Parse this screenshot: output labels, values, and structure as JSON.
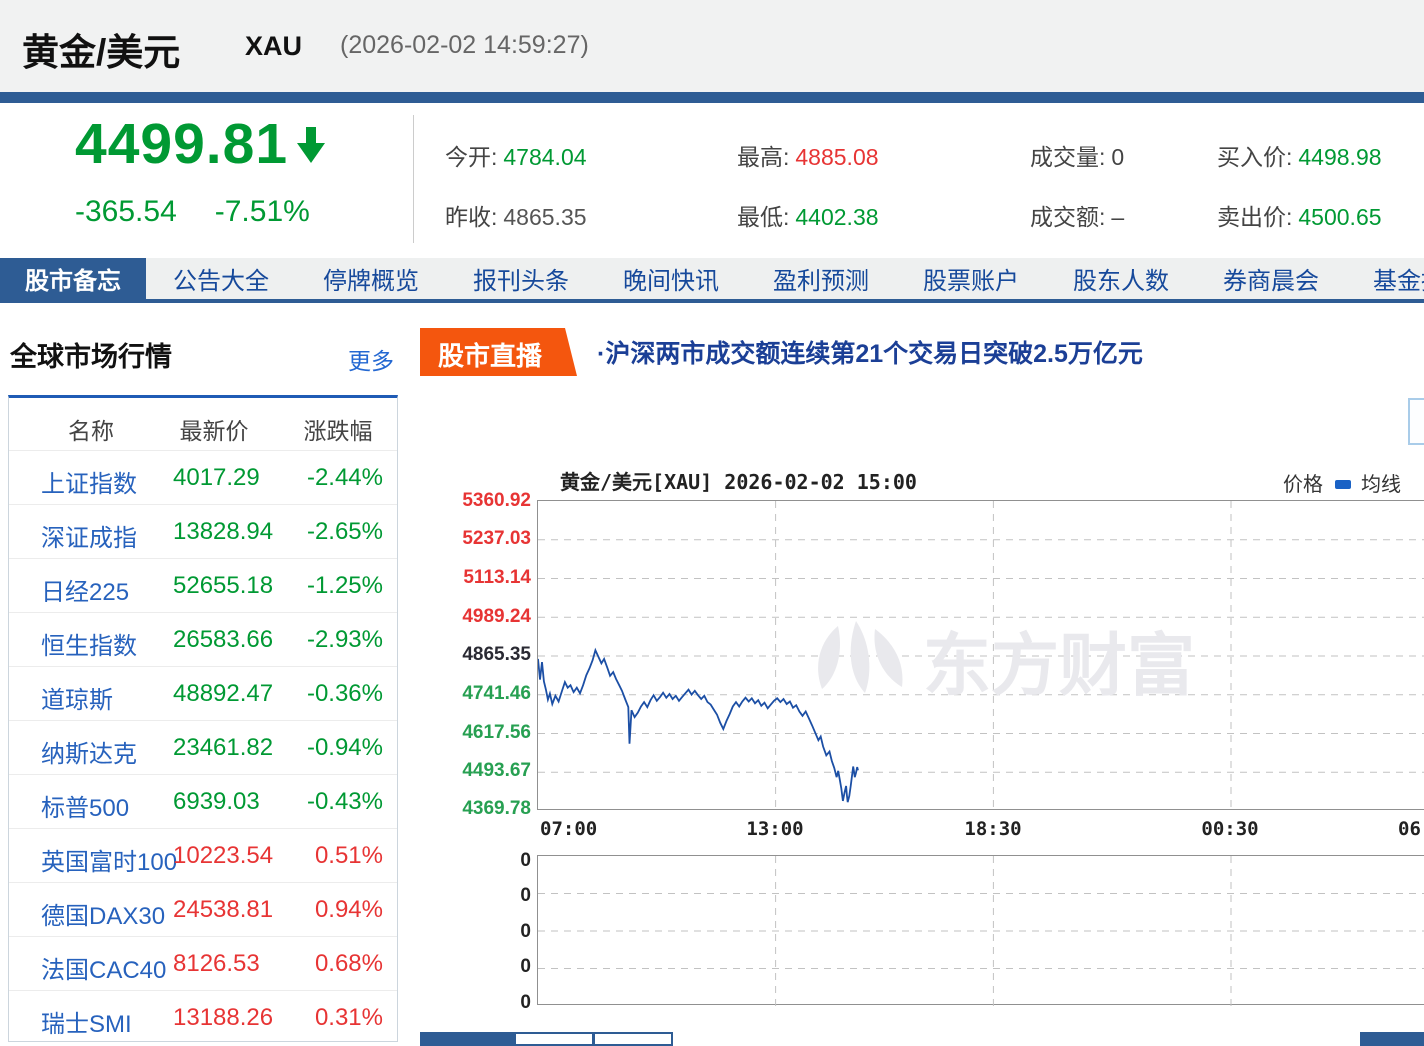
{
  "header": {
    "title": "黄金/美元",
    "symbol": "XAU",
    "timestamp": "(2026-02-02 14:59:27)"
  },
  "quote": {
    "price": "4499.81",
    "change": "-365.54",
    "change_pct": "-7.51%",
    "stats": [
      {
        "label": "今开:",
        "value": "4784.04",
        "color": "green"
      },
      {
        "label": "昨收:",
        "value": "4865.35",
        "color": "gray"
      },
      {
        "label": "最高:",
        "value": "4885.08",
        "color": "red"
      },
      {
        "label": "最低:",
        "value": "4402.38",
        "color": "green"
      },
      {
        "label": "成交量:",
        "value": "0",
        "color": "dark"
      },
      {
        "label": "成交额:",
        "value": "–",
        "color": "dark"
      },
      {
        "label": "买入价:",
        "value": "4498.98",
        "color": "green"
      },
      {
        "label": "卖出价:",
        "value": "4500.65",
        "color": "green"
      }
    ]
  },
  "tabs": {
    "items": [
      {
        "label": "股市备忘"
      },
      {
        "label": "公告大全"
      },
      {
        "label": "停牌概览"
      },
      {
        "label": "报刊头条"
      },
      {
        "label": "晚间快讯"
      },
      {
        "label": "盈利预测"
      },
      {
        "label": "股票账户"
      },
      {
        "label": "股东人数"
      },
      {
        "label": "券商晨会"
      },
      {
        "label": "基金持仓"
      }
    ]
  },
  "sidebar": {
    "title": "全球市场行情",
    "more": "更多",
    "columns": [
      "名称",
      "最新价",
      "涨跌幅"
    ],
    "rows": [
      {
        "name": "上证指数",
        "price": "4017.29",
        "change": "-2.44%",
        "dir": "down"
      },
      {
        "name": "深证成指",
        "price": "13828.94",
        "change": "-2.65%",
        "dir": "down"
      },
      {
        "name": "日经225",
        "price": "52655.18",
        "change": "-1.25%",
        "dir": "down"
      },
      {
        "name": "恒生指数",
        "price": "26583.66",
        "change": "-2.93%",
        "dir": "down"
      },
      {
        "name": "道琼斯",
        "price": "48892.47",
        "change": "-0.36%",
        "dir": "down"
      },
      {
        "name": "纳斯达克",
        "price": "23461.82",
        "change": "-0.94%",
        "dir": "down"
      },
      {
        "name": "标普500",
        "price": "6939.03",
        "change": "-0.43%",
        "dir": "down"
      },
      {
        "name": "英国富时100",
        "price": "10223.54",
        "change": "0.51%",
        "dir": "up"
      },
      {
        "name": "德国DAX30",
        "price": "24538.81",
        "change": "0.94%",
        "dir": "up"
      },
      {
        "name": "法国CAC40",
        "price": "8126.53",
        "change": "0.68%",
        "dir": "up"
      },
      {
        "name": "瑞士SMI",
        "price": "13188.26",
        "change": "0.31%",
        "dir": "up"
      }
    ]
  },
  "live_banner": {
    "badge": "股市直播",
    "headline": "·沪深两市成交额连续第21个交易日突破2.5万亿元"
  },
  "chart_data": {
    "type": "line",
    "title": "黄金/美元[XAU] 2026-02-02 15:00",
    "legend": {
      "price": "价格",
      "ma": "均线"
    },
    "watermark": "东方财富",
    "ylim": [
      4369.78,
      5360.92
    ],
    "y_ticks": [
      {
        "label": "5360.92",
        "color": "red"
      },
      {
        "label": "5237.03",
        "color": "red"
      },
      {
        "label": "5113.14",
        "color": "red"
      },
      {
        "label": "4989.24",
        "color": "red"
      },
      {
        "label": "4865.35",
        "color": "mid"
      },
      {
        "label": "4741.46",
        "color": "green"
      },
      {
        "label": "4617.56",
        "color": "green"
      },
      {
        "label": "4493.67",
        "color": "green"
      },
      {
        "label": "4369.78",
        "color": "green"
      }
    ],
    "x_ticks": [
      {
        "label": "07:00",
        "hour": 0
      },
      {
        "label": "13:00",
        "hour": 6
      },
      {
        "label": "18:30",
        "hour": 11.5
      },
      {
        "label": "00:30",
        "hour": 17.5
      },
      {
        "label": "06",
        "hour": 23.5
      }
    ],
    "x_gridlines_hours": [
      6,
      11.5,
      17.5
    ],
    "prev_close": 4865.35,
    "series": [
      {
        "name": "价格",
        "points": [
          [
            0,
            4856
          ],
          [
            0.05,
            4790
          ],
          [
            0.1,
            4846
          ],
          [
            0.15,
            4784
          ],
          [
            0.2,
            4758
          ],
          [
            0.25,
            4726
          ],
          [
            0.3,
            4745
          ],
          [
            0.36,
            4712
          ],
          [
            0.44,
            4738
          ],
          [
            0.52,
            4720
          ],
          [
            0.6,
            4752
          ],
          [
            0.68,
            4782
          ],
          [
            0.75,
            4764
          ],
          [
            0.82,
            4772
          ],
          [
            0.9,
            4750
          ],
          [
            0.98,
            4764
          ],
          [
            1.06,
            4746
          ],
          [
            1.14,
            4772
          ],
          [
            1.22,
            4804
          ],
          [
            1.3,
            4826
          ],
          [
            1.38,
            4852
          ],
          [
            1.45,
            4884
          ],
          [
            1.52,
            4864
          ],
          [
            1.6,
            4842
          ],
          [
            1.67,
            4856
          ],
          [
            1.75,
            4828
          ],
          [
            1.82,
            4802
          ],
          [
            1.9,
            4814
          ],
          [
            1.97,
            4792
          ],
          [
            2.05,
            4772
          ],
          [
            2.12,
            4754
          ],
          [
            2.2,
            4728
          ],
          [
            2.28,
            4702
          ],
          [
            2.31,
            4585
          ],
          [
            2.36,
            4692
          ],
          [
            2.44,
            4670
          ],
          [
            2.52,
            4684
          ],
          [
            2.6,
            4704
          ],
          [
            2.68,
            4718
          ],
          [
            2.76,
            4702
          ],
          [
            2.84,
            4724
          ],
          [
            2.92,
            4740
          ],
          [
            3.0,
            4722
          ],
          [
            3.08,
            4734
          ],
          [
            3.16,
            4748
          ],
          [
            3.24,
            4732
          ],
          [
            3.32,
            4744
          ],
          [
            3.4,
            4728
          ],
          [
            3.48,
            4738
          ],
          [
            3.56,
            4722
          ],
          [
            3.64,
            4734
          ],
          [
            3.72,
            4746
          ],
          [
            3.8,
            4758
          ],
          [
            3.88,
            4742
          ],
          [
            3.96,
            4754
          ],
          [
            4.04,
            4740
          ],
          [
            4.12,
            4728
          ],
          [
            4.2,
            4738
          ],
          [
            4.28,
            4718
          ],
          [
            4.36,
            4710
          ],
          [
            4.44,
            4694
          ],
          [
            4.52,
            4678
          ],
          [
            4.6,
            4652
          ],
          [
            4.68,
            4632
          ],
          [
            4.76,
            4658
          ],
          [
            4.84,
            4680
          ],
          [
            4.92,
            4704
          ],
          [
            5.0,
            4718
          ],
          [
            5.08,
            4704
          ],
          [
            5.16,
            4720
          ],
          [
            5.24,
            4732
          ],
          [
            5.32,
            4720
          ],
          [
            5.4,
            4730
          ],
          [
            5.48,
            4714
          ],
          [
            5.56,
            4724
          ],
          [
            5.64,
            4706
          ],
          [
            5.72,
            4716
          ],
          [
            5.8,
            4698
          ],
          [
            5.88,
            4710
          ],
          [
            5.96,
            4722
          ],
          [
            6.04,
            4730
          ],
          [
            6.12,
            4718
          ],
          [
            6.2,
            4728
          ],
          [
            6.28,
            4712
          ],
          [
            6.36,
            4720
          ],
          [
            6.44,
            4700
          ],
          [
            6.52,
            4708
          ],
          [
            6.6,
            4688
          ],
          [
            6.68,
            4674
          ],
          [
            6.76,
            4688
          ],
          [
            6.84,
            4666
          ],
          [
            6.92,
            4644
          ],
          [
            7.0,
            4620
          ],
          [
            7.08,
            4596
          ],
          [
            7.14,
            4608
          ],
          [
            7.2,
            4576
          ],
          [
            7.28,
            4548
          ],
          [
            7.36,
            4560
          ],
          [
            7.42,
            4530
          ],
          [
            7.48,
            4508
          ],
          [
            7.54,
            4478
          ],
          [
            7.58,
            4498
          ],
          [
            7.62,
            4470
          ],
          [
            7.66,
            4442
          ],
          [
            7.7,
            4402
          ],
          [
            7.74,
            4428
          ],
          [
            7.78,
            4450
          ],
          [
            7.8,
            4420
          ],
          [
            7.82,
            4398
          ],
          [
            7.86,
            4418
          ],
          [
            7.9,
            4452
          ],
          [
            7.93,
            4482
          ],
          [
            7.96,
            4512
          ],
          [
            7.98,
            4496
          ],
          [
            8.0,
            4478
          ],
          [
            8.03,
            4492
          ],
          [
            8.06,
            4510
          ],
          [
            8.08,
            4500
          ]
        ]
      }
    ],
    "volume_ticks": [
      "0",
      "0",
      "0",
      "0",
      "0"
    ]
  }
}
